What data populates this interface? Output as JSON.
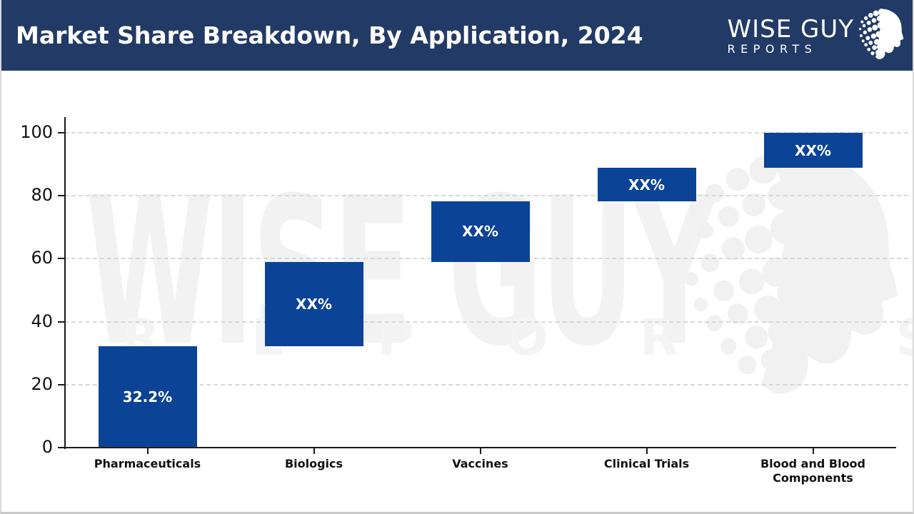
{
  "header": {
    "title": "Market Share Breakdown, By Application, 2024",
    "bg_color": "#223a66",
    "logo": {
      "line1": "WISE GUY",
      "line2": "REPORTS"
    }
  },
  "watermark": {
    "line1": "WISE GUY",
    "line2": "R E P O R T S",
    "color": "#f2f2f2"
  },
  "icons": {
    "brand_head": "dotted-head-profile-icon"
  },
  "chart_data": {
    "type": "bar",
    "subtype": "waterfall",
    "title": "Market Share Breakdown, By Application, 2024",
    "categories": [
      "Pharmaceuticals",
      "Biologics",
      "Vaccines",
      "Clinical Trials",
      "Blood and Blood Components"
    ],
    "segments": [
      {
        "category": "Pharmaceuticals",
        "start": 0,
        "end": 32.2,
        "value": 32.2,
        "value_label": "32.2%"
      },
      {
        "category": "Biologics",
        "start": 32.2,
        "end": 59.0,
        "value": 26.8,
        "value_label": "XX%"
      },
      {
        "category": "Vaccines",
        "start": 59.0,
        "end": 78.3,
        "value": 19.3,
        "value_label": "XX%"
      },
      {
        "category": "Clinical Trials",
        "start": 78.3,
        "end": 88.8,
        "value": 10.5,
        "value_label": "XX%"
      },
      {
        "category": "Blood and Blood Components",
        "start": 88.8,
        "end": 100.0,
        "value": 11.2,
        "value_label": "XX%"
      }
    ],
    "y_ticks": [
      0,
      20,
      40,
      60,
      80,
      100
    ],
    "ylim": [
      0,
      105
    ],
    "xlabel": "",
    "ylabel": "",
    "grid": "horizontal dashed",
    "legend": "none",
    "bar_color": "#0b4397",
    "grid_color": "#d8d8d8",
    "axis_color": "#1a1a1a"
  }
}
